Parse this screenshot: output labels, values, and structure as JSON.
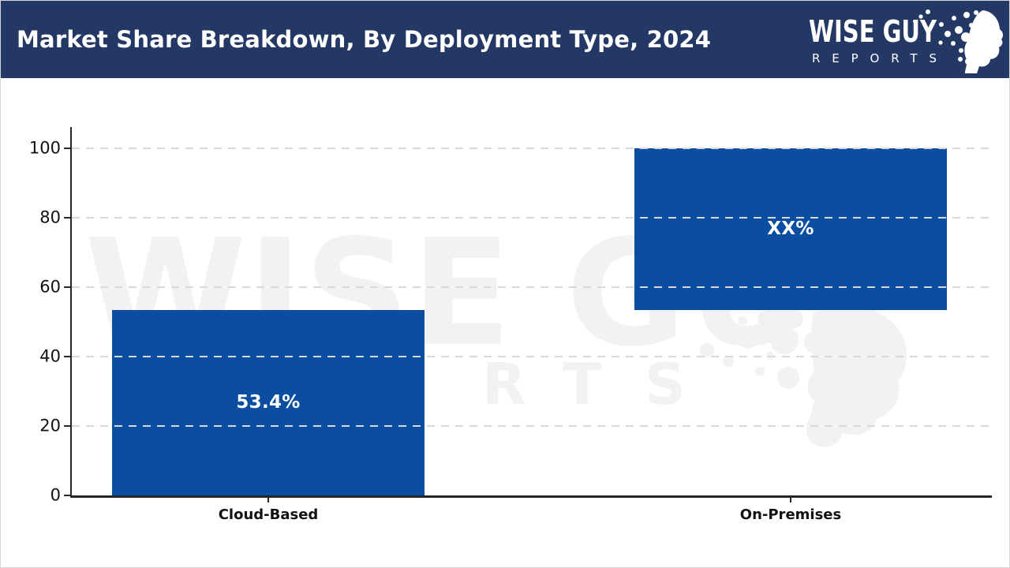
{
  "header": {
    "title": "Market Share Breakdown, By Deployment Type, 2024",
    "logo": {
      "line1": "WISE GUY",
      "line2": "REPORTS"
    }
  },
  "watermark": {
    "line1": "WISE GUY",
    "line2": "REPORTS"
  },
  "colors": {
    "header_bg": "#233864",
    "bar": "#0b4da0",
    "grid": "#d9d9d9",
    "watermark": "#f2f2f2",
    "axis": "#262626"
  },
  "chart_data": {
    "type": "bar",
    "title": "Market Share Breakdown, By Deployment Type, 2024",
    "categories": [
      "Cloud-Based",
      "On-Premises"
    ],
    "bars": [
      {
        "category": "Cloud-Based",
        "start": 0,
        "end": 53.4,
        "label": "53.4%"
      },
      {
        "category": "On-Premises",
        "start": 53.4,
        "end": 100,
        "label": "XX%"
      }
    ],
    "yticks": [
      0,
      20,
      40,
      60,
      80,
      100
    ],
    "ylim": [
      0,
      106.1
    ],
    "xlabel": "",
    "ylabel": "",
    "grid": "horizontal-dashed",
    "legend": "none",
    "note": "On-Premises is a floating segment stacked from 53.4 to 100 (value XX% = remainder)"
  }
}
